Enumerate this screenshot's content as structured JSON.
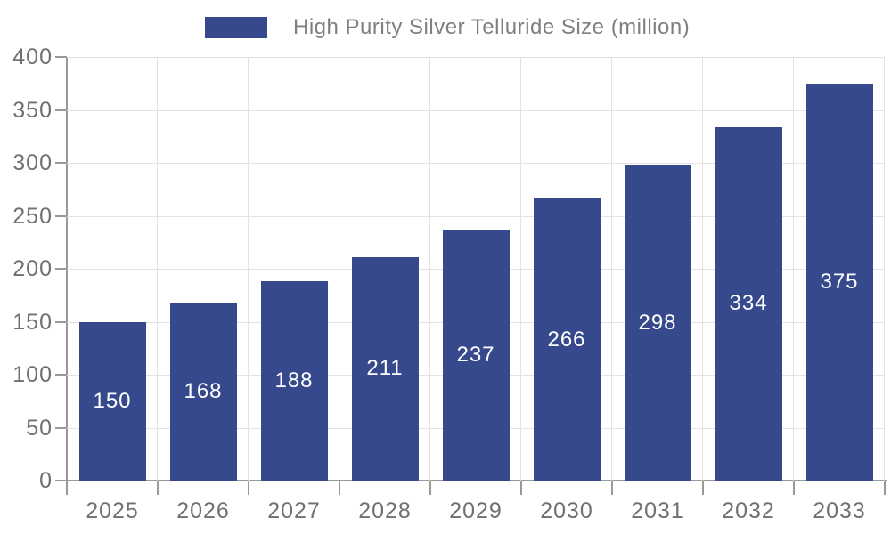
{
  "chart_data": {
    "type": "bar",
    "title": "High Purity Silver Telluride Size (million)",
    "legend": {
      "label": "High Purity Silver Telluride Size (million)",
      "position": "top"
    },
    "categories": [
      "2025",
      "2026",
      "2027",
      "2028",
      "2029",
      "2030",
      "2031",
      "2032",
      "2033"
    ],
    "values": [
      150,
      168,
      188,
      211,
      237,
      266,
      298,
      334,
      375
    ],
    "xlabel": "",
    "ylabel": "",
    "ylim": [
      0,
      400
    ],
    "yticks": [
      0,
      50,
      100,
      150,
      200,
      250,
      300,
      350,
      400
    ],
    "grid": true,
    "value_labels": "inside-center",
    "colors": {
      "bar": "#36498D",
      "bar_label": "#FFFFFF",
      "axis_line": "#999999",
      "grid_line": "#E2E2E2",
      "tick_label": "#707070",
      "legend_text": "#7F7F7F",
      "background": "#FFFFFF"
    }
  }
}
